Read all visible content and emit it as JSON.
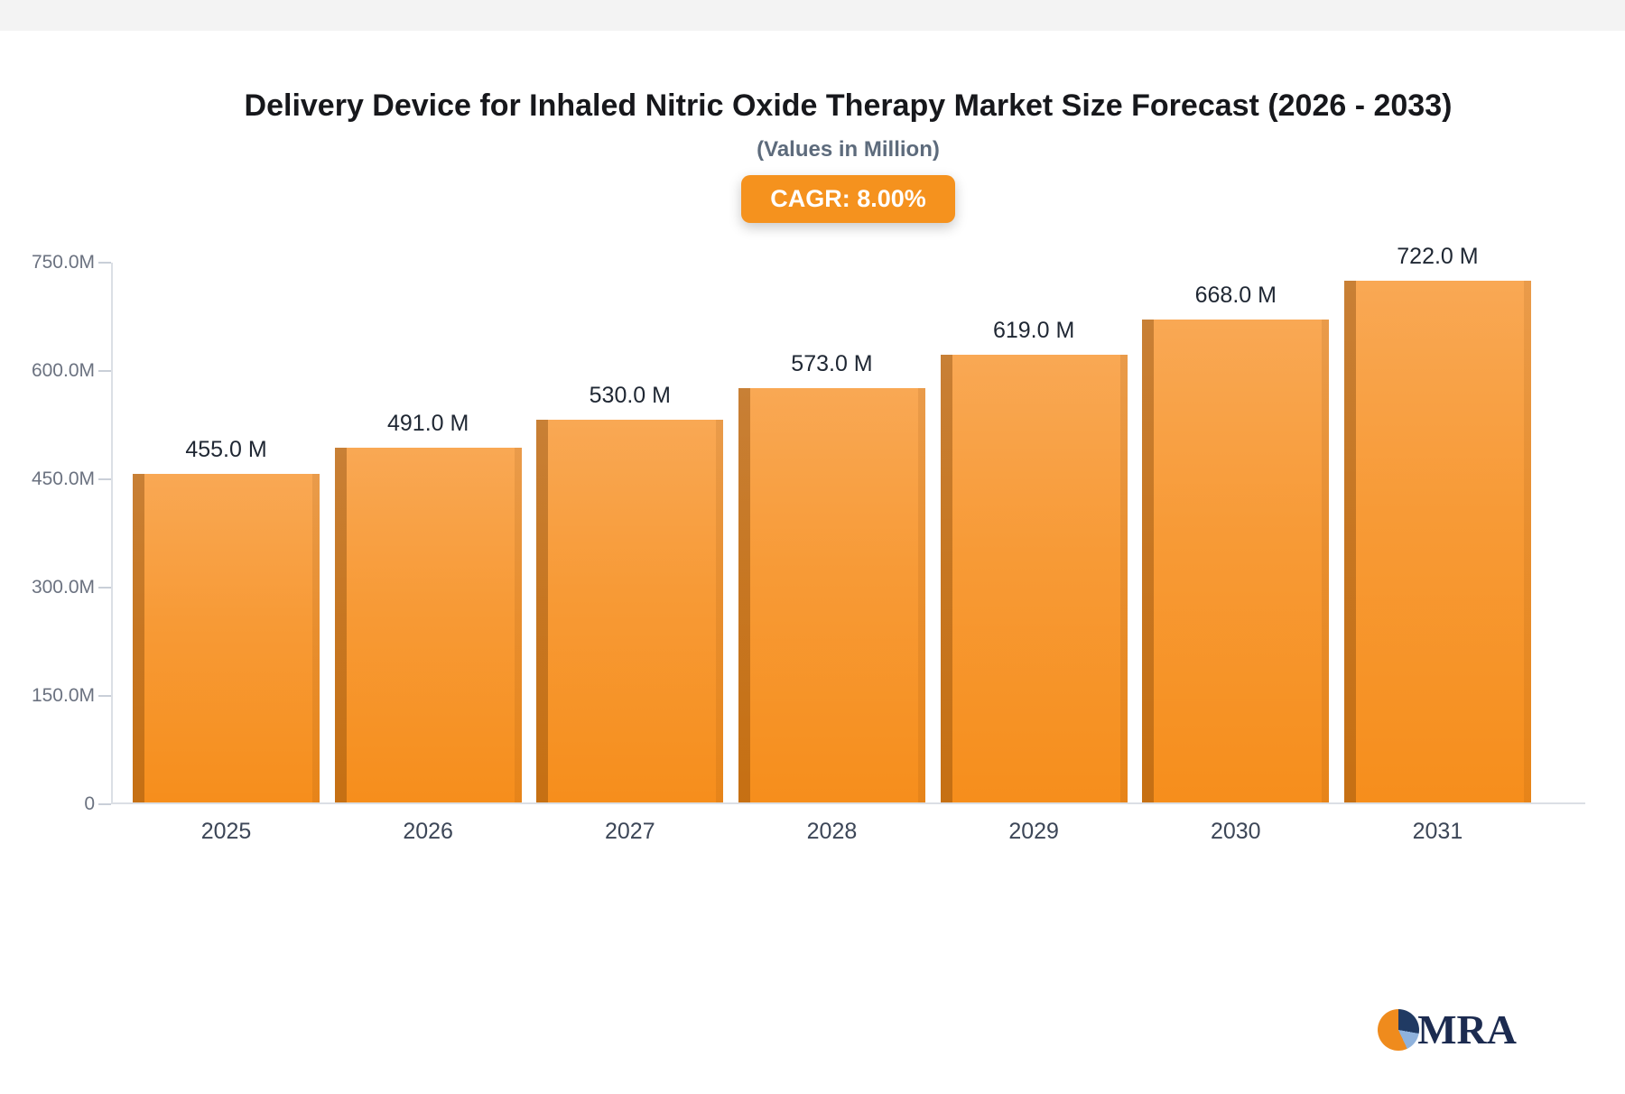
{
  "header": {
    "title": "Delivery Device for Inhaled Nitric Oxide Therapy Market Size Forecast (2026 - 2033)",
    "subtitle": "(Values in Million)",
    "cagr_label": "CAGR: 8.00%"
  },
  "chart_data": {
    "type": "bar",
    "title": "Delivery Device for Inhaled Nitric Oxide Therapy Market Size Forecast (2026 - 2033)",
    "subtitle": "(Values in Million)",
    "unit": "Million",
    "cagr": "8.00%",
    "categories": [
      "2025",
      "2026",
      "2027",
      "2028",
      "2029",
      "2030",
      "2031"
    ],
    "values": [
      455.0,
      491.0,
      530.0,
      573.0,
      619.0,
      668.0,
      722.0
    ],
    "value_labels": [
      "455.0 M",
      "491.0 M",
      "530.0 M",
      "573.0 M",
      "619.0 M",
      "668.0 M",
      "722.0 M"
    ],
    "ylim": [
      0,
      750
    ],
    "yticks": [
      {
        "value": 750,
        "label": "750.0M"
      },
      {
        "value": 600,
        "label": "600.0M"
      },
      {
        "value": 450,
        "label": "450.0M"
      },
      {
        "value": 300,
        "label": "300.0M"
      },
      {
        "value": 150,
        "label": "150.0M"
      },
      {
        "value": 0,
        "label": "0"
      }
    ],
    "grid": false,
    "legend_position": "none",
    "colors": {
      "bar_top": "#F9A854",
      "bar_bottom": "#F68E1C",
      "bar_side_shadow": "#B06A10",
      "axis": "#DBDFE5",
      "value_label": "#1F2733",
      "tick_label": "#6B7280",
      "x_label": "#3C4657",
      "badge": "#F5921E"
    }
  },
  "logo": {
    "text": "MRA"
  }
}
